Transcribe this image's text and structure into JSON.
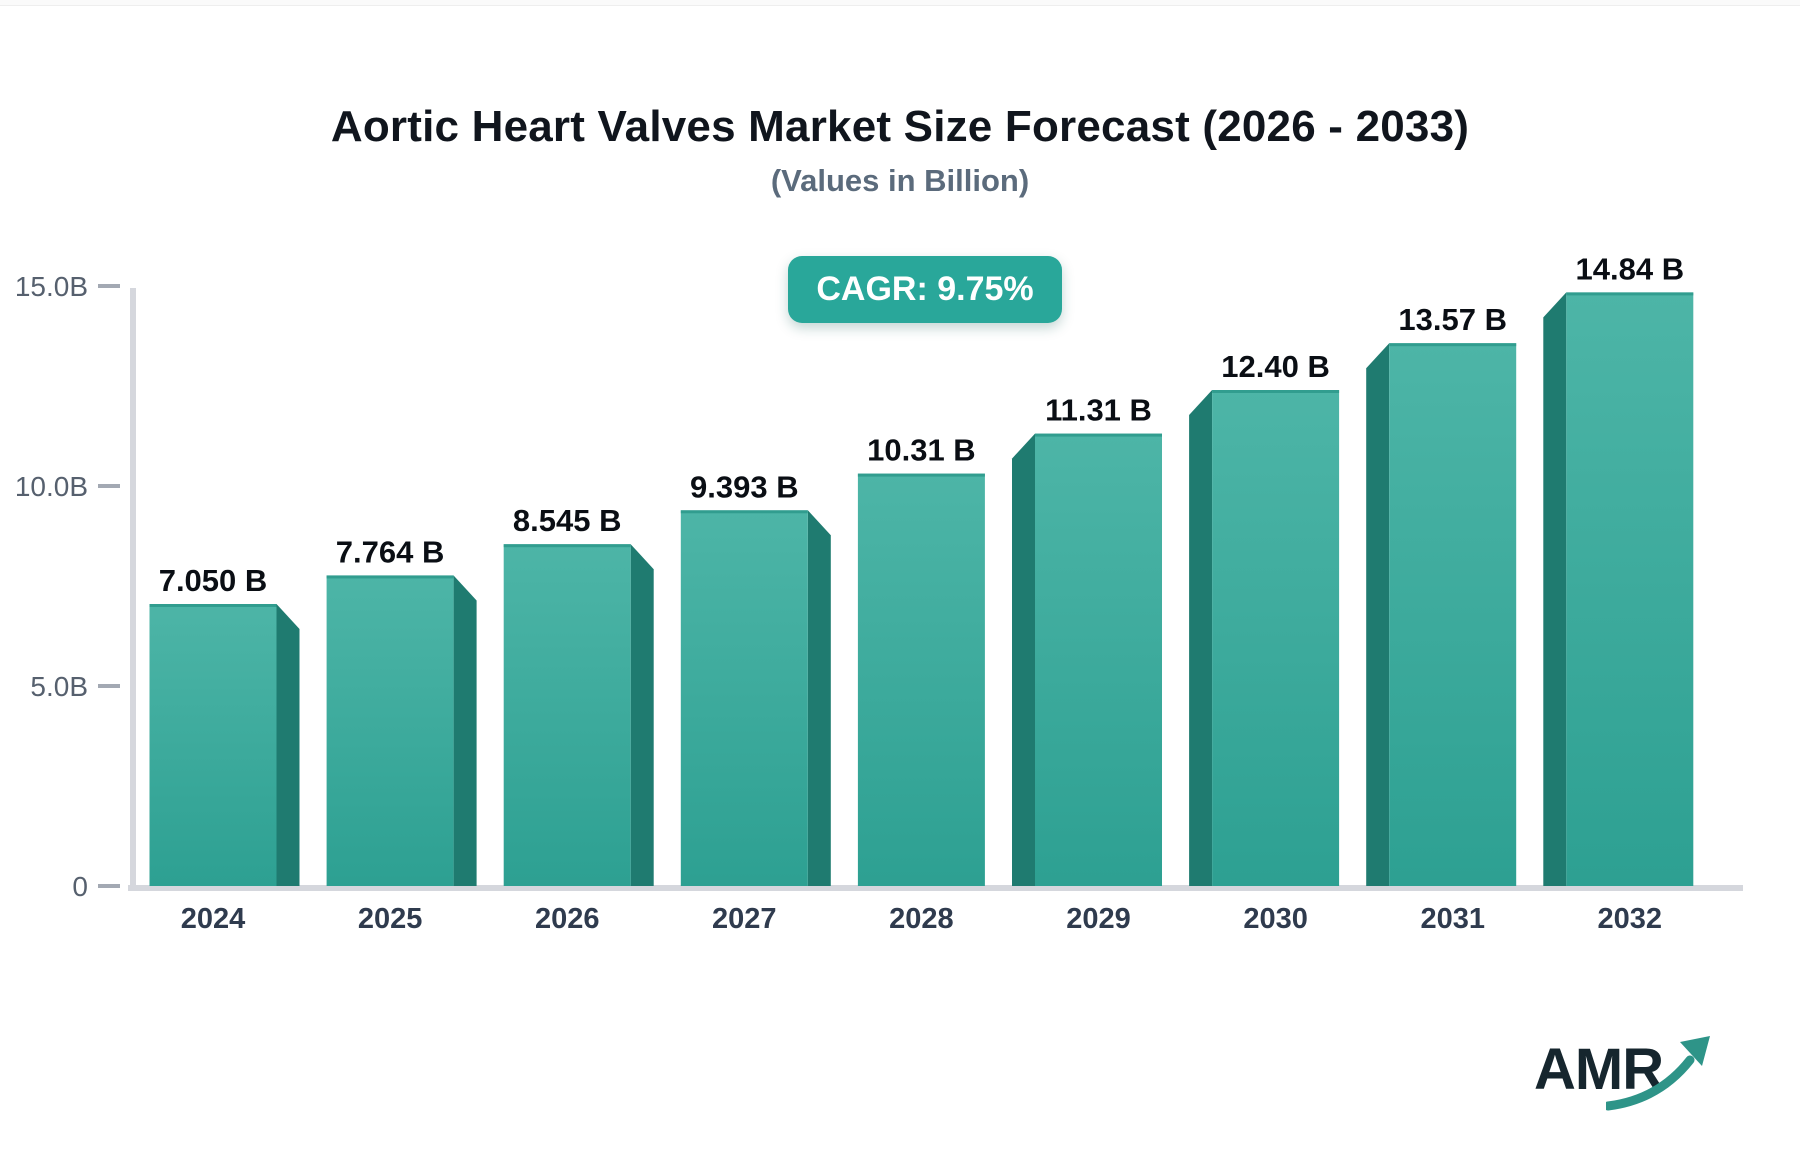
{
  "page": {
    "title": "Aortic Heart Valves Market Size Forecast (2026 - 2033)",
    "subtitle": "(Values in Billion)",
    "cagr_badge": "CAGR: 9.75%",
    "logo_text": "AMR"
  },
  "colors": {
    "badge_bg": "#29a79a",
    "bar_face_top": "#4db5a7",
    "bar_face_bottom": "#2da092",
    "bar_top_edge": "#2d998b",
    "bar_side": "#1f7b70",
    "axis_line": "#d5d7dd",
    "tick_dash": "#a3a9b3",
    "tick_label": "#56606e",
    "x_label": "#2f3b4e",
    "value_label": "#0a0e14",
    "logo_arrow": "#2e9488"
  },
  "chart_data": {
    "type": "bar",
    "title": "Aortic Heart Valves Market Size Forecast (2026 - 2033)",
    "subtitle": "(Values in Billion)",
    "annotation": "CAGR: 9.75%",
    "categories": [
      "2024",
      "2025",
      "2026",
      "2027",
      "2028",
      "2029",
      "2030",
      "2031",
      "2032"
    ],
    "values": [
      7.05,
      7.764,
      8.545,
      9.393,
      10.31,
      11.31,
      12.4,
      13.57,
      14.84
    ],
    "value_labels": [
      "7.050 B",
      "7.764 B",
      "8.545 B",
      "9.393 B",
      "10.31 B",
      "11.31 B",
      "12.40 B",
      "13.57 B",
      "14.84 B"
    ],
    "xlabel": "",
    "ylabel": "",
    "ylim": [
      0,
      15
    ],
    "yticks": [
      {
        "value": 0,
        "label": "0"
      },
      {
        "value": 5,
        "label": "5.0B"
      },
      {
        "value": 10,
        "label": "10.0B"
      },
      {
        "value": 15,
        "label": "15.0B"
      }
    ],
    "grid": false,
    "legend": null,
    "style": "3d-bars-teal"
  }
}
